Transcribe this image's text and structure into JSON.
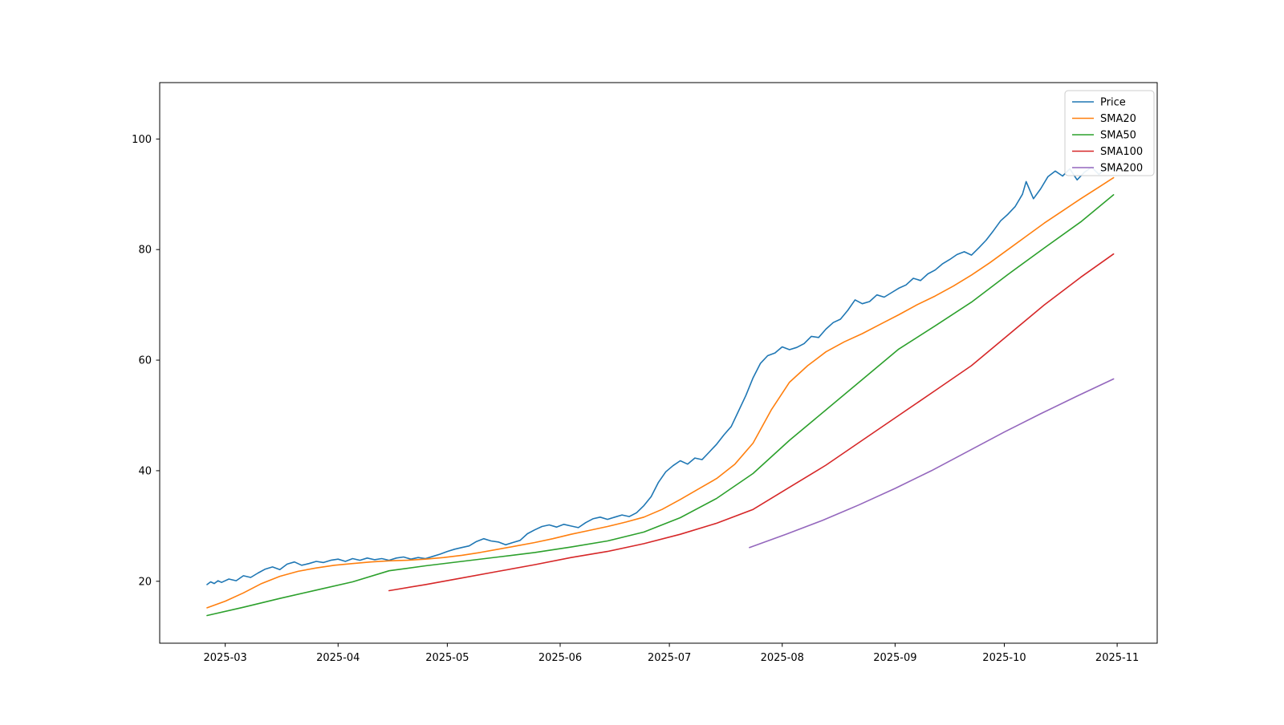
{
  "figure": {
    "background": "#ffffff",
    "plot_background": "#ffffff",
    "spine_color": "#000000"
  },
  "legend": {
    "position": "upper right",
    "entries": [
      {
        "label": "Price",
        "color": "#1f77b4"
      },
      {
        "label": "SMA20",
        "color": "#ff7f0e"
      },
      {
        "label": "SMA50",
        "color": "#2ca02c"
      },
      {
        "label": "SMA100",
        "color": "#d62728"
      },
      {
        "label": "SMA200",
        "color": "#9467bd"
      }
    ]
  },
  "chart_data": {
    "type": "line",
    "title": "",
    "xlabel": "",
    "ylabel": "",
    "grid": false,
    "xlim": [
      "2025-02-11",
      "2025-11-12"
    ],
    "ylim": [
      8.8,
      110.2
    ],
    "x_tick_labels": [
      "2025-03",
      "2025-04",
      "2025-05",
      "2025-06",
      "2025-07",
      "2025-08",
      "2025-09",
      "2025-10",
      "2025-11"
    ],
    "y_tick_labels": [
      "20",
      "40",
      "60",
      "80",
      "100"
    ],
    "y_ticks": [
      20,
      40,
      60,
      80,
      100
    ],
    "series": [
      {
        "name": "Price",
        "color": "#1f77b4",
        "points": [
          [
            "2025-02-24",
            19.4
          ],
          [
            "2025-02-25",
            19.9
          ],
          [
            "2025-02-26",
            19.6
          ],
          [
            "2025-02-27",
            20.1
          ],
          [
            "2025-02-28",
            19.8
          ],
          [
            "2025-03-02",
            20.4
          ],
          [
            "2025-03-04",
            20.1
          ],
          [
            "2025-03-06",
            21.0
          ],
          [
            "2025-03-08",
            20.7
          ],
          [
            "2025-03-10",
            21.5
          ],
          [
            "2025-03-12",
            22.2
          ],
          [
            "2025-03-14",
            22.6
          ],
          [
            "2025-03-16",
            22.1
          ],
          [
            "2025-03-18",
            23.1
          ],
          [
            "2025-03-20",
            23.5
          ],
          [
            "2025-03-22",
            22.9
          ],
          [
            "2025-03-24",
            23.2
          ],
          [
            "2025-03-26",
            23.6
          ],
          [
            "2025-03-28",
            23.4
          ],
          [
            "2025-03-30",
            23.8
          ],
          [
            "2025-04-01",
            24.0
          ],
          [
            "2025-04-03",
            23.6
          ],
          [
            "2025-04-05",
            24.1
          ],
          [
            "2025-04-07",
            23.8
          ],
          [
            "2025-04-09",
            24.2
          ],
          [
            "2025-04-11",
            23.9
          ],
          [
            "2025-04-13",
            24.1
          ],
          [
            "2025-04-15",
            23.8
          ],
          [
            "2025-04-17",
            24.2
          ],
          [
            "2025-04-19",
            24.4
          ],
          [
            "2025-04-21",
            24.0
          ],
          [
            "2025-04-23",
            24.3
          ],
          [
            "2025-04-25",
            24.1
          ],
          [
            "2025-04-27",
            24.5
          ],
          [
            "2025-04-29",
            24.9
          ],
          [
            "2025-05-01",
            25.4
          ],
          [
            "2025-05-03",
            25.8
          ],
          [
            "2025-05-05",
            26.1
          ],
          [
            "2025-05-07",
            26.4
          ],
          [
            "2025-05-09",
            27.2
          ],
          [
            "2025-05-11",
            27.7
          ],
          [
            "2025-05-13",
            27.3
          ],
          [
            "2025-05-15",
            27.1
          ],
          [
            "2025-05-17",
            26.6
          ],
          [
            "2025-05-19",
            27.0
          ],
          [
            "2025-05-21",
            27.4
          ],
          [
            "2025-05-23",
            28.6
          ],
          [
            "2025-05-25",
            29.3
          ],
          [
            "2025-05-27",
            29.9
          ],
          [
            "2025-05-29",
            30.2
          ],
          [
            "2025-05-31",
            29.8
          ],
          [
            "2025-06-02",
            30.3
          ],
          [
            "2025-06-04",
            30.0
          ],
          [
            "2025-06-06",
            29.7
          ],
          [
            "2025-06-08",
            30.6
          ],
          [
            "2025-06-10",
            31.3
          ],
          [
            "2025-06-12",
            31.6
          ],
          [
            "2025-06-14",
            31.2
          ],
          [
            "2025-06-16",
            31.6
          ],
          [
            "2025-06-18",
            32.0
          ],
          [
            "2025-06-20",
            31.7
          ],
          [
            "2025-06-22",
            32.4
          ],
          [
            "2025-06-24",
            33.7
          ],
          [
            "2025-06-26",
            35.3
          ],
          [
            "2025-06-28",
            37.9
          ],
          [
            "2025-06-30",
            39.8
          ],
          [
            "2025-07-02",
            40.9
          ],
          [
            "2025-07-04",
            41.8
          ],
          [
            "2025-07-06",
            41.2
          ],
          [
            "2025-07-08",
            42.3
          ],
          [
            "2025-07-10",
            42.0
          ],
          [
            "2025-07-12",
            43.4
          ],
          [
            "2025-07-14",
            44.8
          ],
          [
            "2025-07-16",
            46.5
          ],
          [
            "2025-07-18",
            48.0
          ],
          [
            "2025-07-20",
            50.8
          ],
          [
            "2025-07-22",
            53.6
          ],
          [
            "2025-07-24",
            56.8
          ],
          [
            "2025-07-26",
            59.4
          ],
          [
            "2025-07-28",
            60.8
          ],
          [
            "2025-07-30",
            61.3
          ],
          [
            "2025-08-01",
            62.4
          ],
          [
            "2025-08-03",
            61.9
          ],
          [
            "2025-08-05",
            62.3
          ],
          [
            "2025-08-07",
            63.0
          ],
          [
            "2025-08-09",
            64.3
          ],
          [
            "2025-08-11",
            64.1
          ],
          [
            "2025-08-13",
            65.6
          ],
          [
            "2025-08-15",
            66.8
          ],
          [
            "2025-08-17",
            67.4
          ],
          [
            "2025-08-19",
            69.0
          ],
          [
            "2025-08-21",
            70.9
          ],
          [
            "2025-08-23",
            70.2
          ],
          [
            "2025-08-25",
            70.6
          ],
          [
            "2025-08-27",
            71.8
          ],
          [
            "2025-08-29",
            71.4
          ],
          [
            "2025-08-31",
            72.2
          ],
          [
            "2025-09-02",
            73.0
          ],
          [
            "2025-09-04",
            73.6
          ],
          [
            "2025-09-06",
            74.8
          ],
          [
            "2025-09-08",
            74.4
          ],
          [
            "2025-09-10",
            75.6
          ],
          [
            "2025-09-12",
            76.3
          ],
          [
            "2025-09-14",
            77.4
          ],
          [
            "2025-09-16",
            78.2
          ],
          [
            "2025-09-18",
            79.1
          ],
          [
            "2025-09-20",
            79.6
          ],
          [
            "2025-09-22",
            79.0
          ],
          [
            "2025-09-24",
            80.3
          ],
          [
            "2025-09-26",
            81.7
          ],
          [
            "2025-09-28",
            83.4
          ],
          [
            "2025-09-30",
            85.2
          ],
          [
            "2025-10-02",
            86.4
          ],
          [
            "2025-10-04",
            87.8
          ],
          [
            "2025-10-06",
            90.0
          ],
          [
            "2025-10-07",
            92.3
          ],
          [
            "2025-10-09",
            89.2
          ],
          [
            "2025-10-11",
            91.0
          ],
          [
            "2025-10-13",
            93.2
          ],
          [
            "2025-10-15",
            94.2
          ],
          [
            "2025-10-17",
            93.3
          ],
          [
            "2025-10-19",
            94.6
          ],
          [
            "2025-10-21",
            92.6
          ],
          [
            "2025-10-23",
            94.0
          ],
          [
            "2025-10-25",
            94.9
          ],
          [
            "2025-10-27",
            93.6
          ],
          [
            "2025-10-29",
            94.7
          ],
          [
            "2025-10-31",
            94.4
          ]
        ]
      },
      {
        "name": "SMA20",
        "color": "#ff7f0e",
        "points": [
          [
            "2025-02-24",
            15.2
          ],
          [
            "2025-03-01",
            16.4
          ],
          [
            "2025-03-06",
            17.9
          ],
          [
            "2025-03-11",
            19.6
          ],
          [
            "2025-03-16",
            20.9
          ],
          [
            "2025-03-21",
            21.8
          ],
          [
            "2025-03-26",
            22.4
          ],
          [
            "2025-03-31",
            22.9
          ],
          [
            "2025-04-05",
            23.2
          ],
          [
            "2025-04-10",
            23.5
          ],
          [
            "2025-04-15",
            23.7
          ],
          [
            "2025-04-20",
            23.8
          ],
          [
            "2025-04-25",
            24.0
          ],
          [
            "2025-04-30",
            24.3
          ],
          [
            "2025-05-05",
            24.7
          ],
          [
            "2025-05-10",
            25.2
          ],
          [
            "2025-05-15",
            25.8
          ],
          [
            "2025-05-20",
            26.4
          ],
          [
            "2025-05-25",
            27.0
          ],
          [
            "2025-05-30",
            27.7
          ],
          [
            "2025-06-04",
            28.5
          ],
          [
            "2025-06-09",
            29.2
          ],
          [
            "2025-06-14",
            29.9
          ],
          [
            "2025-06-19",
            30.7
          ],
          [
            "2025-06-24",
            31.6
          ],
          [
            "2025-06-29",
            33.0
          ],
          [
            "2025-07-04",
            34.8
          ],
          [
            "2025-07-09",
            36.7
          ],
          [
            "2025-07-14",
            38.6
          ],
          [
            "2025-07-19",
            41.2
          ],
          [
            "2025-07-24",
            45.0
          ],
          [
            "2025-07-29",
            51.0
          ],
          [
            "2025-08-03",
            56.0
          ],
          [
            "2025-08-08",
            59.0
          ],
          [
            "2025-08-13",
            61.5
          ],
          [
            "2025-08-18",
            63.3
          ],
          [
            "2025-08-23",
            64.8
          ],
          [
            "2025-08-28",
            66.5
          ],
          [
            "2025-09-02",
            68.2
          ],
          [
            "2025-09-07",
            70.0
          ],
          [
            "2025-09-12",
            71.6
          ],
          [
            "2025-09-17",
            73.4
          ],
          [
            "2025-09-22",
            75.4
          ],
          [
            "2025-09-27",
            77.6
          ],
          [
            "2025-10-02",
            80.0
          ],
          [
            "2025-10-07",
            82.4
          ],
          [
            "2025-10-12",
            84.8
          ],
          [
            "2025-10-17",
            87.0
          ],
          [
            "2025-10-22",
            89.2
          ],
          [
            "2025-10-27",
            91.3
          ],
          [
            "2025-10-31",
            93.0
          ]
        ]
      },
      {
        "name": "SMA50",
        "color": "#2ca02c",
        "points": [
          [
            "2025-02-24",
            13.8
          ],
          [
            "2025-03-06",
            15.3
          ],
          [
            "2025-03-16",
            16.9
          ],
          [
            "2025-03-26",
            18.4
          ],
          [
            "2025-04-05",
            19.9
          ],
          [
            "2025-04-15",
            21.9
          ],
          [
            "2025-04-25",
            22.8
          ],
          [
            "2025-05-05",
            23.6
          ],
          [
            "2025-05-15",
            24.4
          ],
          [
            "2025-05-25",
            25.2
          ],
          [
            "2025-06-04",
            26.2
          ],
          [
            "2025-06-14",
            27.3
          ],
          [
            "2025-06-24",
            28.9
          ],
          [
            "2025-07-04",
            31.5
          ],
          [
            "2025-07-14",
            35.0
          ],
          [
            "2025-07-24",
            39.5
          ],
          [
            "2025-08-03",
            45.5
          ],
          [
            "2025-08-13",
            51.0
          ],
          [
            "2025-08-23",
            56.5
          ],
          [
            "2025-09-02",
            62.0
          ],
          [
            "2025-09-12",
            66.2
          ],
          [
            "2025-09-22",
            70.5
          ],
          [
            "2025-10-02",
            75.5
          ],
          [
            "2025-10-12",
            80.3
          ],
          [
            "2025-10-22",
            85.0
          ],
          [
            "2025-10-31",
            89.9
          ]
        ]
      },
      {
        "name": "SMA100",
        "color": "#d62728",
        "points": [
          [
            "2025-04-15",
            18.3
          ],
          [
            "2025-04-25",
            19.4
          ],
          [
            "2025-05-05",
            20.6
          ],
          [
            "2025-05-15",
            21.8
          ],
          [
            "2025-05-25",
            23.0
          ],
          [
            "2025-06-04",
            24.3
          ],
          [
            "2025-06-14",
            25.4
          ],
          [
            "2025-06-24",
            26.8
          ],
          [
            "2025-07-04",
            28.5
          ],
          [
            "2025-07-14",
            30.5
          ],
          [
            "2025-07-24",
            33.0
          ],
          [
            "2025-08-03",
            37.0
          ],
          [
            "2025-08-13",
            41.0
          ],
          [
            "2025-08-23",
            45.5
          ],
          [
            "2025-09-02",
            50.0
          ],
          [
            "2025-09-12",
            54.5
          ],
          [
            "2025-09-22",
            59.0
          ],
          [
            "2025-10-02",
            64.5
          ],
          [
            "2025-10-12",
            70.0
          ],
          [
            "2025-10-22",
            75.0
          ],
          [
            "2025-10-31",
            79.2
          ]
        ]
      },
      {
        "name": "SMA200",
        "color": "#9467bd",
        "points": [
          [
            "2025-07-23",
            26.1
          ],
          [
            "2025-08-02",
            28.5
          ],
          [
            "2025-08-12",
            31.0
          ],
          [
            "2025-08-22",
            33.8
          ],
          [
            "2025-09-01",
            36.8
          ],
          [
            "2025-09-11",
            40.0
          ],
          [
            "2025-09-21",
            43.5
          ],
          [
            "2025-10-01",
            47.0
          ],
          [
            "2025-10-11",
            50.3
          ],
          [
            "2025-10-21",
            53.5
          ],
          [
            "2025-10-31",
            56.6
          ]
        ]
      }
    ]
  }
}
